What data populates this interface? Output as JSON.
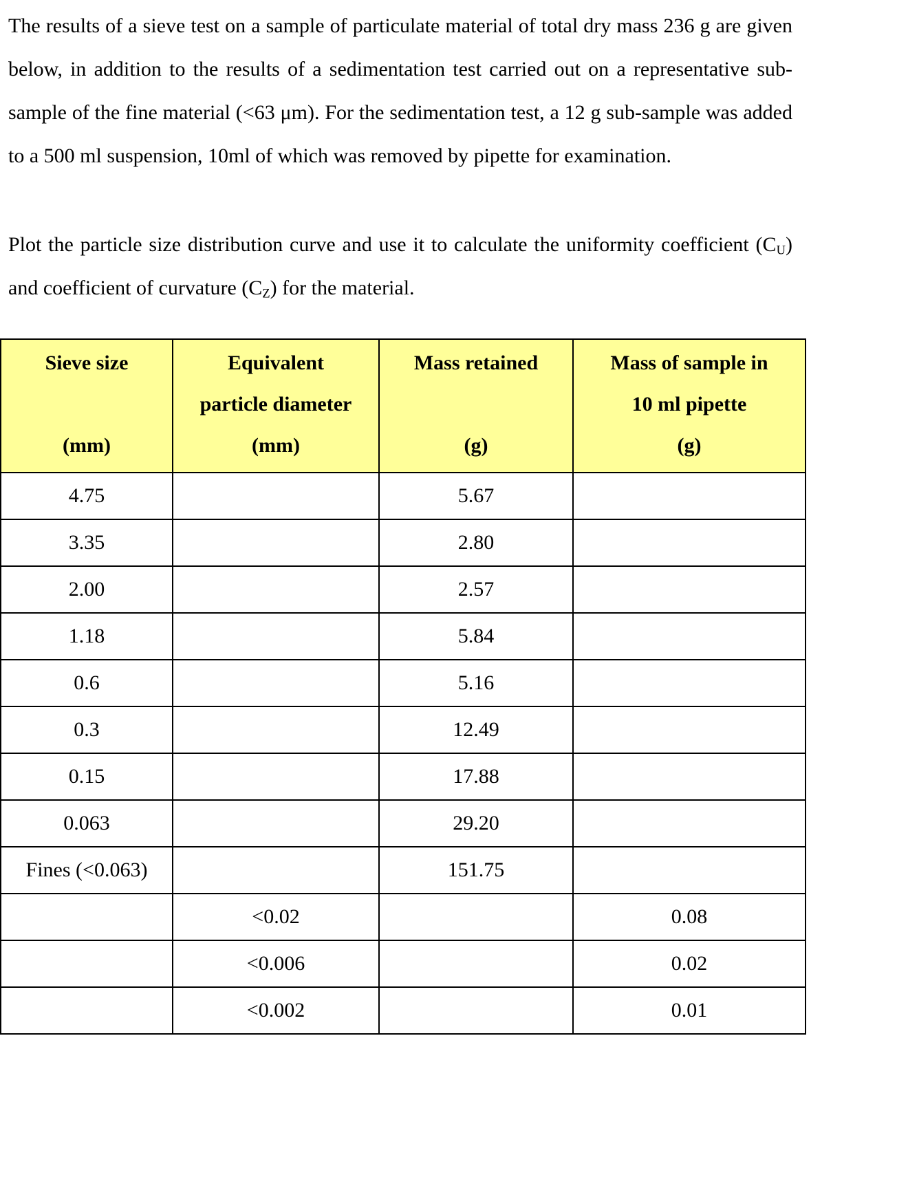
{
  "colors": {
    "header-bg": "#ffff99",
    "border": "#000000"
  },
  "intro": {
    "paragraph1": "The results of a sieve test on a sample of particulate material of total dry mass 236 g are given below, in addition to the results of a sedimentation test carried out on a representative sub-sample of the fine material (<63 μm). For the sedimentation test, a 12 g sub-sample was added to a 500 ml suspension, 10ml of which was removed by pipette for examination.",
    "paragraph2": {
      "part1": "Plot the particle size distribution curve and use it to calculate the uniformity coefficient (C",
      "sub1": "U",
      "part2": ") and coefficient of curvature (C",
      "sub2": "Z",
      "part3": ") for the material."
    }
  },
  "table": {
    "headers": [
      {
        "line1": "Sieve size",
        "line2": "",
        "unit": "(mm)"
      },
      {
        "line1": "Equivalent",
        "line2": "particle diameter",
        "unit": "(mm)"
      },
      {
        "line1": "Mass retained",
        "line2": "",
        "unit": "(g)"
      },
      {
        "line1": "Mass of sample in",
        "line2": "10 ml pipette",
        "unit": "(g)"
      }
    ],
    "rows": [
      {
        "sieve": "4.75",
        "diameter": "",
        "mass": "5.67",
        "pipette": ""
      },
      {
        "sieve": "3.35",
        "diameter": "",
        "mass": "2.80",
        "pipette": ""
      },
      {
        "sieve": "2.00",
        "diameter": "",
        "mass": "2.57",
        "pipette": ""
      },
      {
        "sieve": "1.18",
        "diameter": "",
        "mass": "5.84",
        "pipette": ""
      },
      {
        "sieve": "0.6",
        "diameter": "",
        "mass": "5.16",
        "pipette": ""
      },
      {
        "sieve": "0.3",
        "diameter": "",
        "mass": "12.49",
        "pipette": ""
      },
      {
        "sieve": "0.15",
        "diameter": "",
        "mass": "17.88",
        "pipette": ""
      },
      {
        "sieve": "0.063",
        "diameter": "",
        "mass": "29.20",
        "pipette": ""
      },
      {
        "sieve": "Fines (<0.063)",
        "diameter": "",
        "mass": "151.75",
        "pipette": ""
      },
      {
        "sieve": "",
        "diameter": "<0.02",
        "mass": "",
        "pipette": "0.08"
      },
      {
        "sieve": "",
        "diameter": "<0.006",
        "mass": "",
        "pipette": "0.02"
      },
      {
        "sieve": "",
        "diameter": "<0.002",
        "mass": "",
        "pipette": "0.01"
      }
    ]
  }
}
